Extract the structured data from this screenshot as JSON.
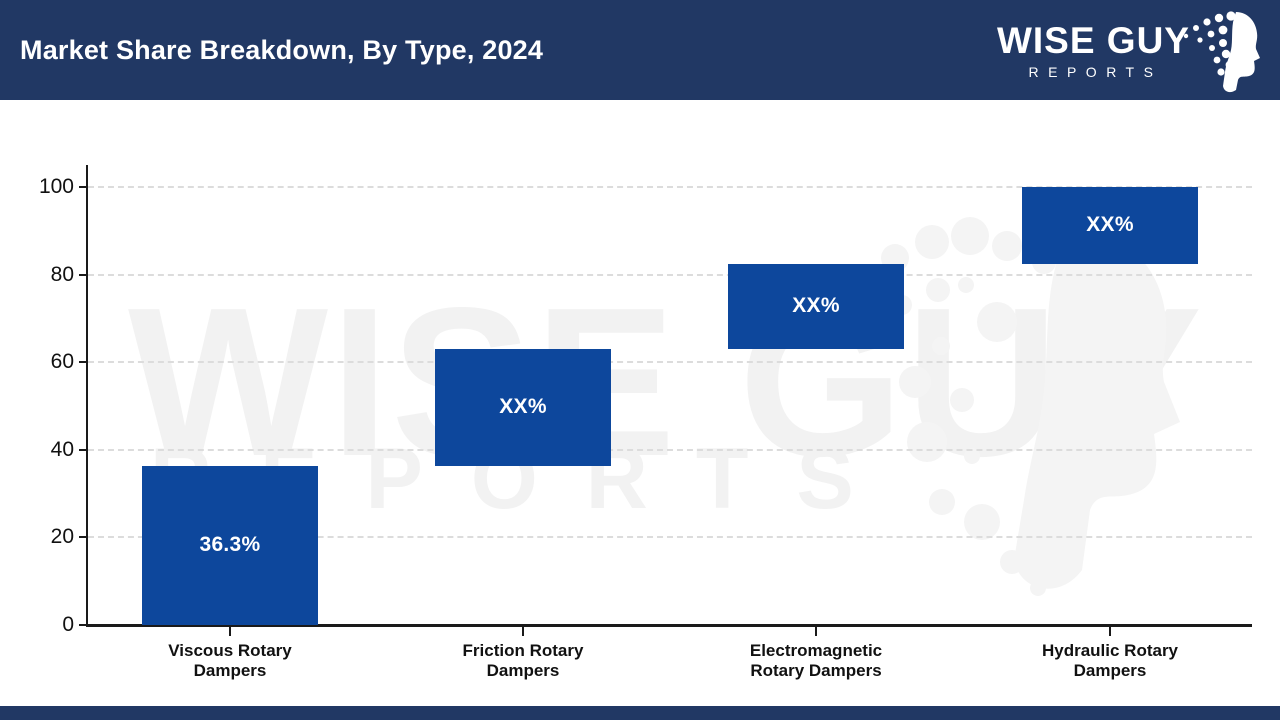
{
  "header": {
    "title": "Market Share Breakdown, By Type, 2024",
    "logo": {
      "line1": "WISE GUY",
      "line2": "REPORTS"
    }
  },
  "watermark": {
    "line1": "WISE GUY",
    "line2": "REPORTS"
  },
  "chart_data": {
    "type": "bar",
    "subtype": "floating-waterfall",
    "title": "Market Share Breakdown, By Type, 2024",
    "categories": [
      "Viscous Rotary Dampers",
      "Friction Rotary Dampers",
      "Electromagnetic Rotary Dampers",
      "Hydraulic Rotary Dampers"
    ],
    "category_lines": [
      [
        "Viscous Rotary",
        "Dampers"
      ],
      [
        "Friction Rotary",
        "Dampers"
      ],
      [
        "Electromagnetic",
        "Rotary Dampers"
      ],
      [
        "Hydraulic Rotary",
        "Dampers"
      ]
    ],
    "segments": [
      {
        "start": 0,
        "end": 36.3,
        "label": "36.3%"
      },
      {
        "start": 36.3,
        "end": 63,
        "label": "XX%"
      },
      {
        "start": 63,
        "end": 82.5,
        "label": "XX%"
      },
      {
        "start": 82.5,
        "end": 100,
        "label": "XX%"
      }
    ],
    "yticks": [
      0,
      20,
      40,
      60,
      80,
      100
    ],
    "ylim": [
      0,
      105
    ],
    "xlabel": "",
    "ylabel": "",
    "grid": true,
    "legend": "none",
    "bar_color": "#0d479c",
    "bar_label_color": "#ffffff",
    "gridline_color": "#dcdcdc",
    "axis_color": "#1a1a1a",
    "header_color": "#213864",
    "watermark_color": "#f2f2f2"
  }
}
